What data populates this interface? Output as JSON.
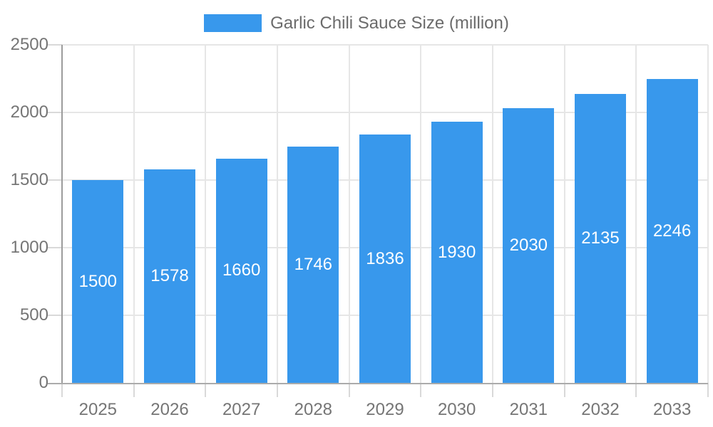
{
  "legend": {
    "label": "Garlic Chili Sauce Size (million)"
  },
  "chart_data": {
    "type": "bar",
    "title": "",
    "categories": [
      "2025",
      "2026",
      "2027",
      "2028",
      "2029",
      "2030",
      "2031",
      "2032",
      "2033"
    ],
    "series": [
      {
        "name": "Garlic Chili Sauce Size (million)",
        "values": [
          1500,
          1578,
          1660,
          1746,
          1836,
          1930,
          2030,
          2135,
          2246
        ]
      }
    ],
    "xlabel": "",
    "ylabel": "",
    "ylim": [
      0,
      2500
    ],
    "yticks": [
      0,
      500,
      1000,
      1500,
      2000,
      2500
    ],
    "grid": true,
    "legend_position": "top-center",
    "bar_value_labels": "inside-middle"
  },
  "colors": {
    "bar": "#3898EC",
    "bar_label": "#FFFFFF",
    "grid": "#E6E6E6",
    "tick": "#D9D9D9",
    "axis_line": "#9C9C9C",
    "baseline": "#ABABAB",
    "axis_text": "#757575",
    "legend_text": "#6B6B6B",
    "background": "#FFFFFF"
  }
}
